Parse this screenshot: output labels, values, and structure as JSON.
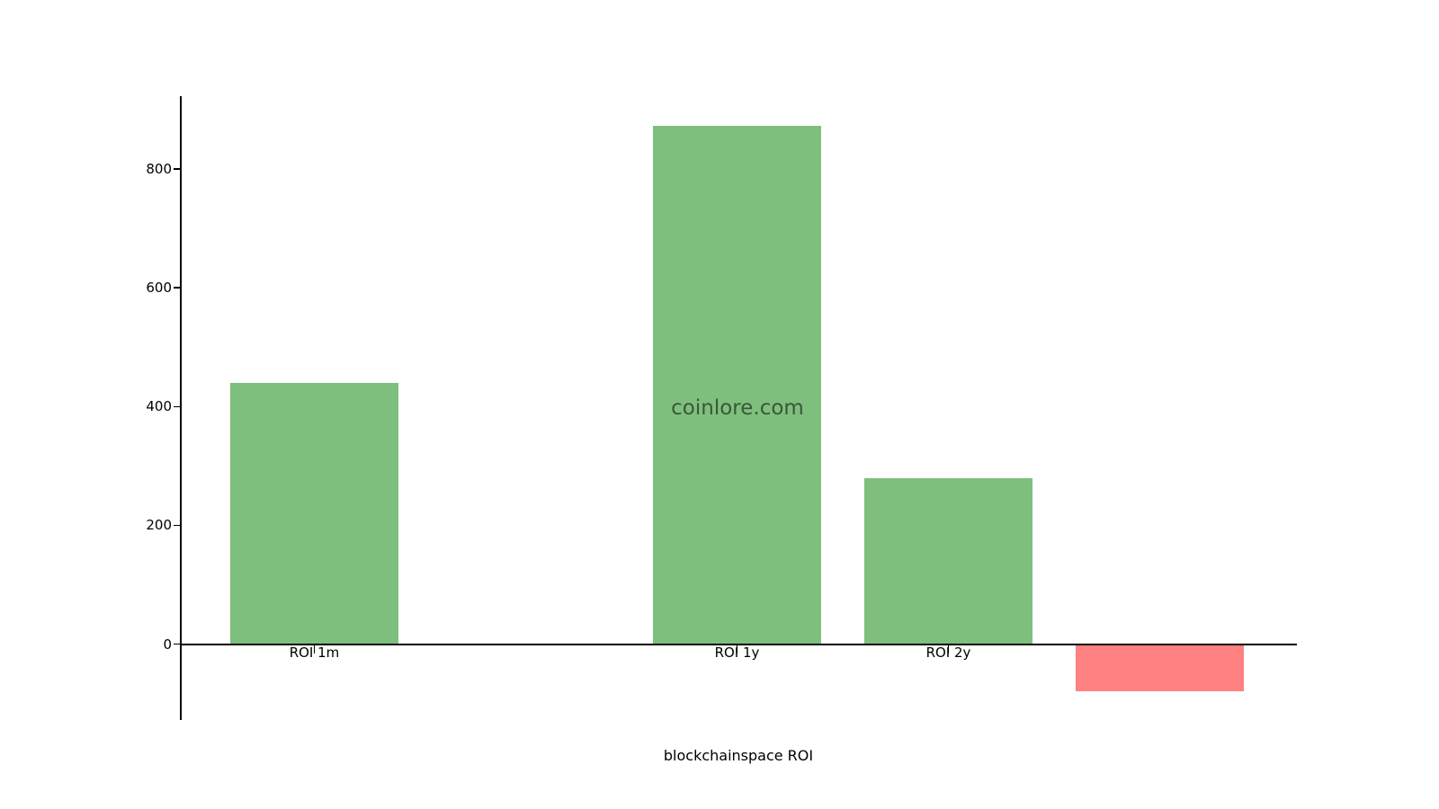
{
  "chart_data": {
    "type": "bar",
    "title": "",
    "xlabel": "blockchainspace ROI",
    "ylabel": "",
    "watermark": "coinlore.com",
    "categories": [
      "ROI 1m",
      "ROI 1y",
      "ROI 2y",
      ""
    ],
    "series": [
      {
        "name": "blockchainspace ROI",
        "values": [
          440,
          873,
          279,
          -80
        ]
      }
    ],
    "bars": [
      {
        "label": "ROI 1m",
        "value": 440,
        "slot": 0,
        "color": "#7ebf7d",
        "label_visible": true
      },
      {
        "label": "ROI 1y",
        "value": 873,
        "slot": 2,
        "color": "#7ebf7d",
        "label_visible": true
      },
      {
        "label": "ROI 2y",
        "value": 279,
        "slot": 3,
        "color": "#7ebf7d",
        "label_visible": true
      },
      {
        "label": "",
        "value": -80,
        "slot": 4,
        "color": "#ff8080",
        "label_visible": false
      }
    ],
    "yticks": [
      0,
      200,
      400,
      600,
      800
    ],
    "ylim": [
      -126,
      925
    ],
    "grid": false,
    "legend": null,
    "colors": {
      "positive": "#7ebf7d",
      "negative": "#ff8080",
      "axis": "#000000",
      "tick_text": "#000000",
      "watermark_text": "rgba(0,0,0,0.55)"
    }
  }
}
